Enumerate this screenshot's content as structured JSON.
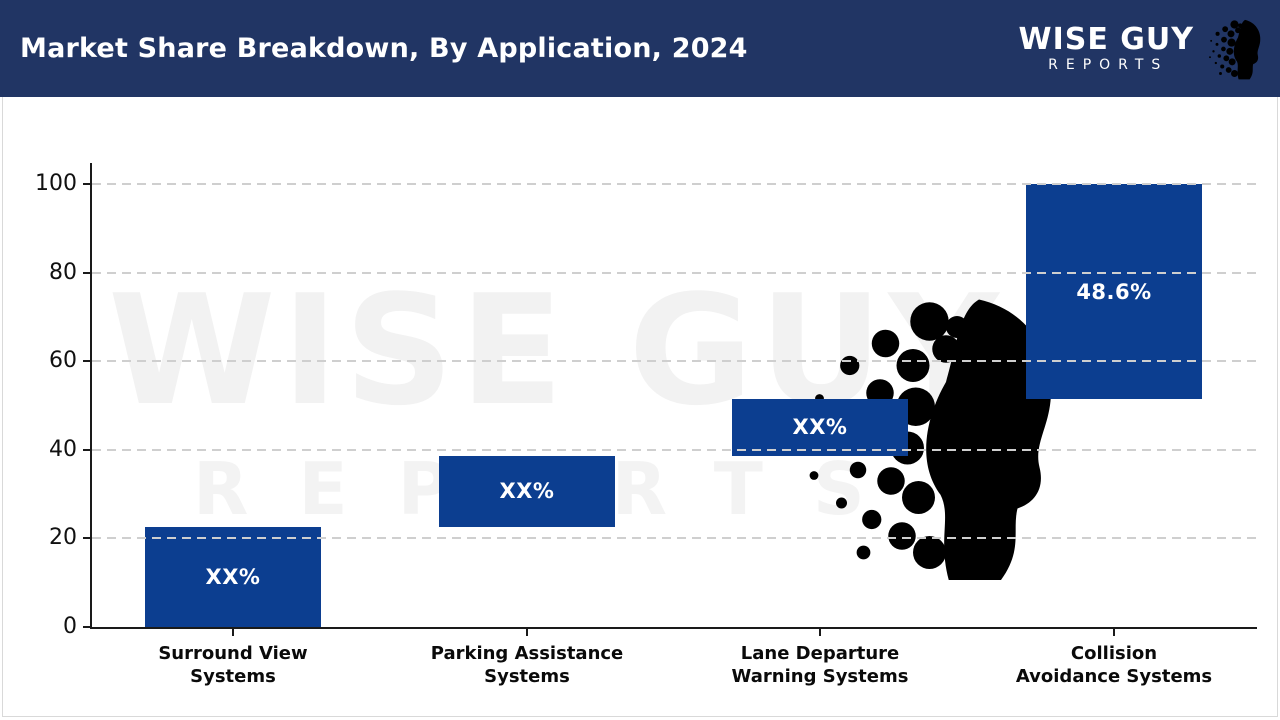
{
  "report": {
    "title": "Market Share Breakdown, By Application, 2024"
  },
  "logo": {
    "name": "WISE GUY",
    "subtitle": "REPORTS"
  },
  "watermark": {
    "line1": "WISE GUY",
    "line2": "REPORTS"
  },
  "colors": {
    "header_bg": "#213564",
    "bar": "#0c3e90",
    "gridline": "#cfcfcf",
    "border": "#d9d9d9",
    "watermark": "#f2f2f2"
  },
  "chart_data": {
    "type": "bar",
    "subtype": "floating-waterfall",
    "title": "Market Share Breakdown, By Application, 2024",
    "xlabel": "",
    "ylabel": "",
    "ylim": [
      0,
      100
    ],
    "yticks": [
      0,
      20,
      40,
      60,
      80,
      100
    ],
    "grid": {
      "horizontal": true,
      "style": "dashed",
      "drawn_over_bars": true
    },
    "legend": null,
    "bar_color": "#0c3e90",
    "categories": [
      [
        "Surround View",
        "Systems"
      ],
      [
        "Parking Assistance",
        "Systems"
      ],
      [
        "Lane Departure",
        "Warning Systems"
      ],
      [
        "Collision",
        "Avoidance Systems"
      ]
    ],
    "bars": [
      {
        "category": "Surround View Systems",
        "start": 0,
        "end": 22.5,
        "value": 22.5,
        "value_label": "XX%"
      },
      {
        "category": "Parking Assistance Systems",
        "start": 22.5,
        "end": 38.7,
        "value": 16.2,
        "value_label": "XX%"
      },
      {
        "category": "Lane Departure Warning Systems",
        "start": 38.7,
        "end": 51.4,
        "value": 12.7,
        "value_label": "XX%"
      },
      {
        "category": "Collision Avoidance Systems",
        "start": 51.4,
        "end": 100,
        "value": 48.6,
        "value_label": "48.6%"
      }
    ]
  }
}
